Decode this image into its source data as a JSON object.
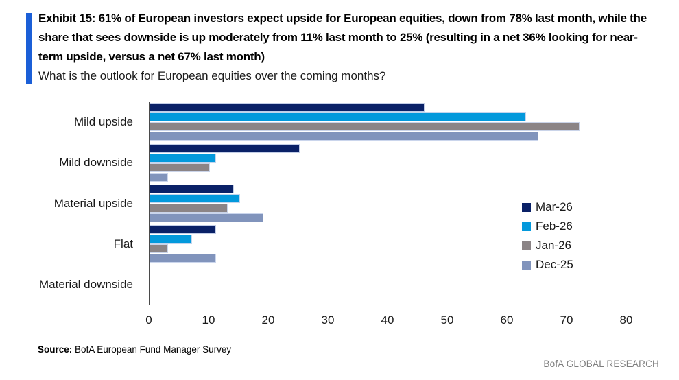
{
  "header": {
    "exhibit_title": "Exhibit 15: 61% of European investors expect upside for European equities, down from 78% last month, while the share that sees downside is up moderately from 11% last month to 25% (resulting in a net 36% looking for near-term upside, versus a net 67% last month)",
    "subtitle": "What is the outlook for European equities over the coming months?",
    "accent_color": "#1b5fd7"
  },
  "chart_data": {
    "type": "bar",
    "orientation": "horizontal",
    "title": "",
    "xlabel": "",
    "ylabel": "",
    "categories": [
      "Mild upside",
      "Mild downside",
      "Material upside",
      "Flat",
      "Material downside"
    ],
    "series": [
      {
        "name": "Mar-26",
        "color": "#0a2167",
        "values": [
          46,
          25,
          14,
          11,
          0
        ]
      },
      {
        "name": "Feb-26",
        "color": "#0399dc",
        "values": [
          63,
          11,
          15,
          7,
          0
        ]
      },
      {
        "name": "Jan-26",
        "color": "#8b8486",
        "values": [
          72,
          10,
          13,
          3,
          0
        ]
      },
      {
        "name": "Dec-25",
        "color": "#8194bc",
        "values": [
          65,
          3,
          19,
          11,
          0
        ]
      }
    ],
    "xlim": [
      0,
      80
    ],
    "x_ticks": [
      "0",
      "10",
      "20",
      "30",
      "40",
      "50",
      "60",
      "70",
      "80"
    ],
    "grid": false,
    "legend_position": "right-middle"
  },
  "footer": {
    "source_label": "Source:",
    "source_text": " BofA European Fund Manager Survey",
    "brand": "BofA GLOBAL RESEARCH"
  }
}
